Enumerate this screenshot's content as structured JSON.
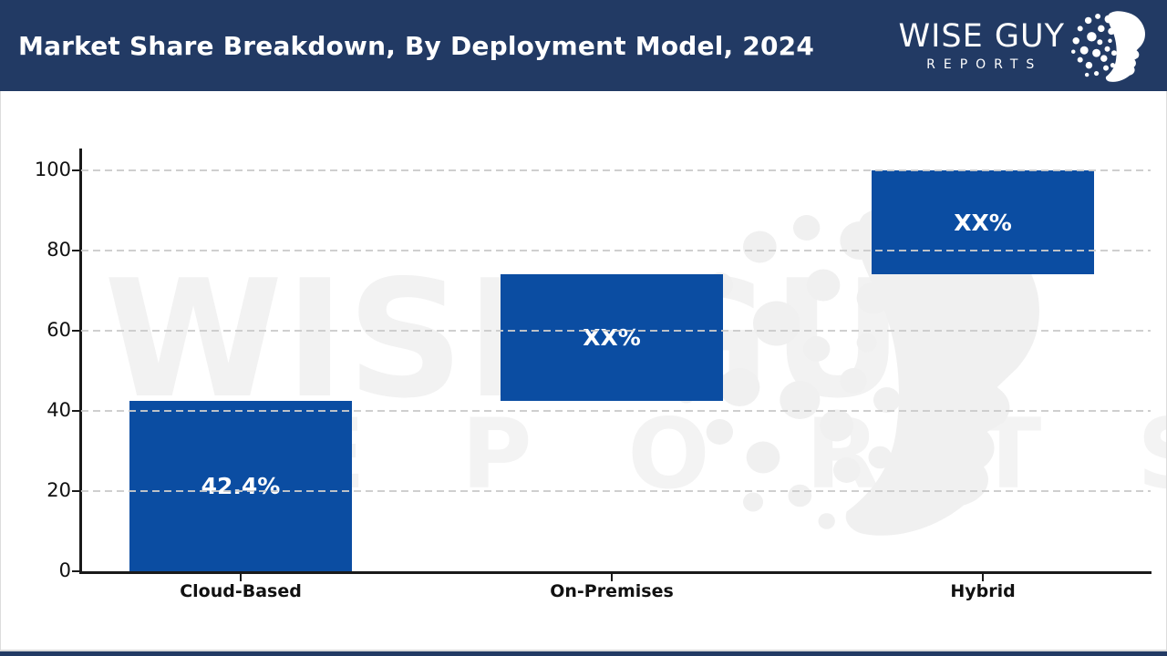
{
  "header": {
    "title": "Market Share Breakdown, By Deployment Model, 2024",
    "logo": {
      "line1": "WISE GUY",
      "line2": "REPORTS"
    }
  },
  "watermark": {
    "line1": "WISE GUY",
    "line2": "R E P O R T S"
  },
  "colors": {
    "header_bg": "#223a64",
    "bar": "#0b4da2",
    "bar_label": "#ffffff",
    "gridline": "#cbcbcb",
    "axis": "#1a1a1a",
    "watermark": "#f2f2f2",
    "footer_bar": "#223a64"
  },
  "chart_data": {
    "type": "bar",
    "subtype": "waterfall-stacked",
    "title": "Market Share Breakdown, By Deployment Model, 2024",
    "categories": [
      "Cloud-Based",
      "On-Premises",
      "Hybrid"
    ],
    "segments": [
      {
        "category": "Cloud-Based",
        "start": 0,
        "end": 42.4,
        "value": 42.4,
        "label": "42.4%"
      },
      {
        "category": "On-Premises",
        "start": 42.4,
        "end": 74,
        "value": 31.6,
        "label": "XX%"
      },
      {
        "category": "Hybrid",
        "start": 74,
        "end": 100,
        "value": 26,
        "label": "XX%"
      }
    ],
    "xlabel": "",
    "ylabel": "",
    "ylim": [
      0,
      100
    ],
    "yticks": [
      0,
      20,
      40,
      60,
      80,
      100
    ],
    "grid": "dashed-horizontal",
    "legend": "none"
  }
}
